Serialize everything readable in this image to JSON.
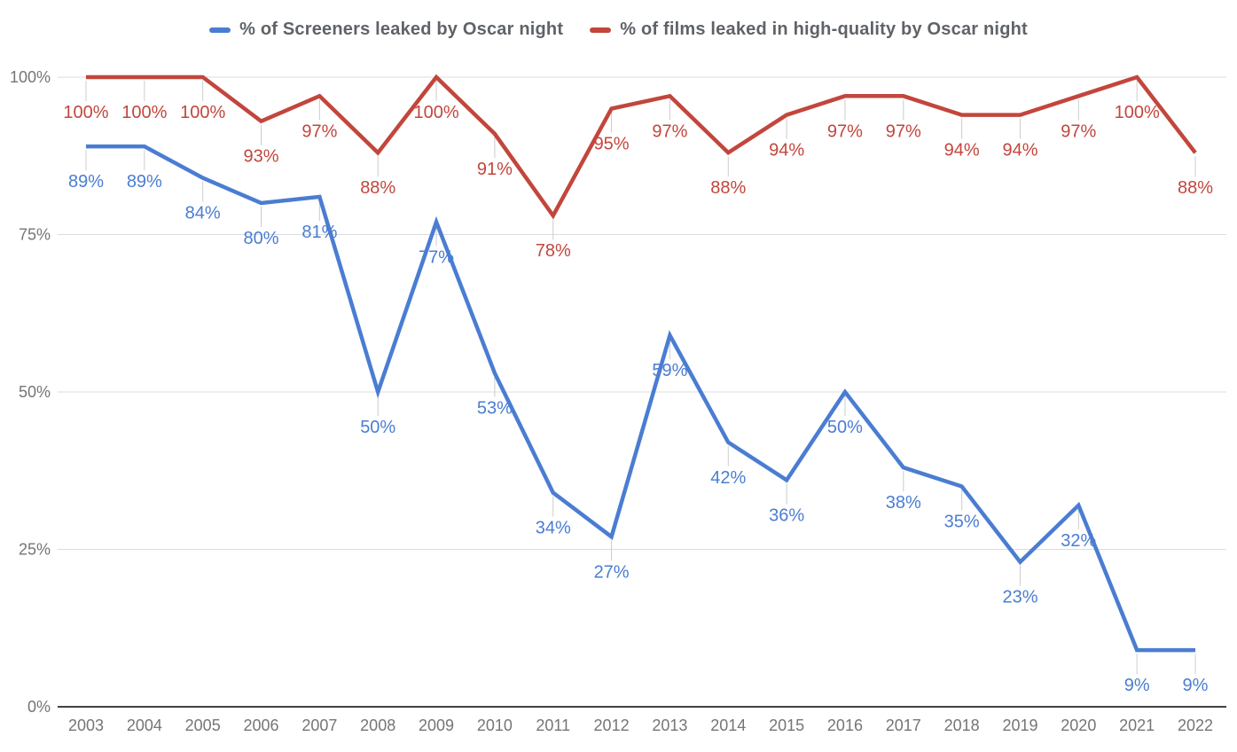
{
  "chart_data": {
    "type": "line",
    "x": [
      2003,
      2004,
      2005,
      2006,
      2007,
      2008,
      2009,
      2010,
      2011,
      2012,
      2013,
      2014,
      2015,
      2016,
      2017,
      2018,
      2019,
      2020,
      2021,
      2022
    ],
    "series": [
      {
        "name": "% of Screeners leaked by Oscar night",
        "color": "#4a7dd2",
        "values": [
          89,
          89,
          84,
          80,
          81,
          50,
          77,
          53,
          34,
          27,
          59,
          42,
          36,
          50,
          38,
          35,
          23,
          32,
          9,
          9
        ],
        "labels": [
          "89%",
          "89%",
          "84%",
          "80%",
          "81%",
          "50%",
          "77%",
          "53%",
          "34%",
          "27%",
          "59%",
          "42%",
          "36%",
          "50%",
          "38%",
          "35%",
          "23%",
          "32%",
          "9%",
          "9%"
        ]
      },
      {
        "name": "% of films leaked in high-quality by Oscar night",
        "color": "#c2463c",
        "values": [
          100,
          100,
          100,
          93,
          97,
          88,
          100,
          91,
          78,
          95,
          97,
          88,
          94,
          97,
          97,
          94,
          94,
          97,
          100,
          88
        ],
        "labels": [
          "100%",
          "100%",
          "100%",
          "93%",
          "97%",
          "88%",
          "100%",
          "91%",
          "78%",
          "95%",
          "97%",
          "88%",
          "94%",
          "97%",
          "97%",
          "94%",
          "94%",
          "97%",
          "100%",
          "88%"
        ]
      }
    ],
    "title": "",
    "xlabel": "",
    "ylabel": "",
    "ylim": [
      0,
      100
    ],
    "y_ticks": [
      {
        "value": 0,
        "label": "0%"
      },
      {
        "value": 25,
        "label": "25%"
      },
      {
        "value": 50,
        "label": "50%"
      },
      {
        "value": 75,
        "label": "75%"
      },
      {
        "value": 100,
        "label": "100%"
      }
    ],
    "grid": true,
    "legend_position": "top",
    "data_labels": true,
    "colors": {
      "gridline": "#dadce0",
      "axis_line": "#424242",
      "tick_text": "#757575",
      "legend_text": "#5f6368",
      "leader_tick": "#cccccc",
      "background": "#ffffff"
    }
  }
}
